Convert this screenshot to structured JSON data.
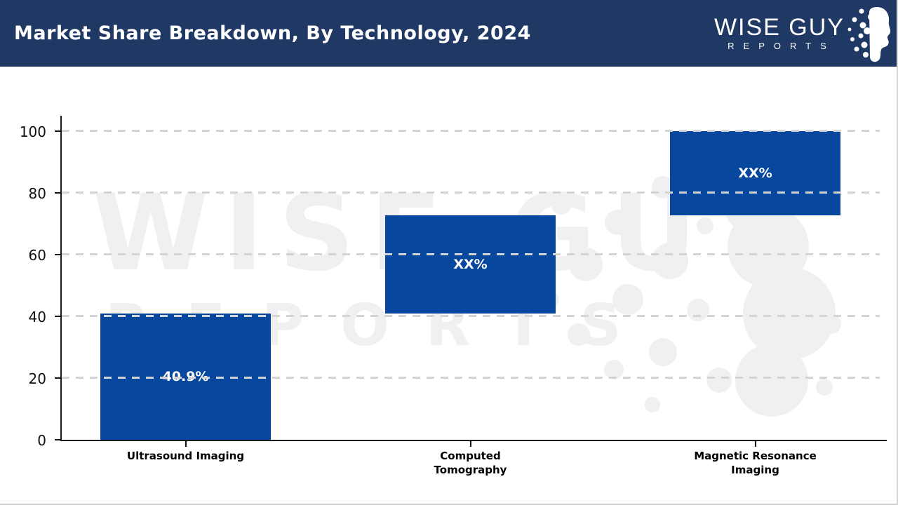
{
  "header": {
    "title": "Market Share Breakdown, By Technology, 2024",
    "logo": {
      "name_line": "WISE GUY",
      "reports_line": "REPORTS"
    }
  },
  "watermark": {
    "line1": "WISE GUY",
    "line2": "REPORTS"
  },
  "chart_data": {
    "type": "bar",
    "variant": "waterfall-segments",
    "title": "Market Share Breakdown, By Technology, 2024",
    "categories": [
      "Ultrasound Imaging",
      "Computed Tomography",
      "Magnetic Resonance Imaging"
    ],
    "category_label_lines": [
      [
        "Ultrasound Imaging"
      ],
      [
        "Computed",
        "Tomography"
      ],
      [
        "Magnetic Resonance",
        "Imaging"
      ]
    ],
    "values": [
      40.9,
      31.9,
      27.2
    ],
    "segments": [
      {
        "category": "Ultrasound Imaging",
        "start": 0,
        "end": 40.9,
        "value_label": "40.9%"
      },
      {
        "category": "Computed Tomography",
        "start": 40.9,
        "end": 72.8,
        "value_label": "XX%"
      },
      {
        "category": "Magnetic Resonance Imaging",
        "start": 72.8,
        "end": 100,
        "value_label": "XX%"
      }
    ],
    "xlabel": "",
    "ylabel": "",
    "ylim": [
      0,
      100
    ],
    "yticks": [
      0,
      20,
      40,
      60,
      80,
      100
    ],
    "grid": "horizontal-dashed",
    "legend": "none",
    "bar_color": "#07489e"
  },
  "colors": {
    "header_bg": "#1f3864",
    "bar": "#07489e",
    "watermark": "#f0f0f3",
    "grid": "#d4d4d4",
    "axis": "#1a1a1a",
    "bar_label_text": "#ffffff"
  }
}
